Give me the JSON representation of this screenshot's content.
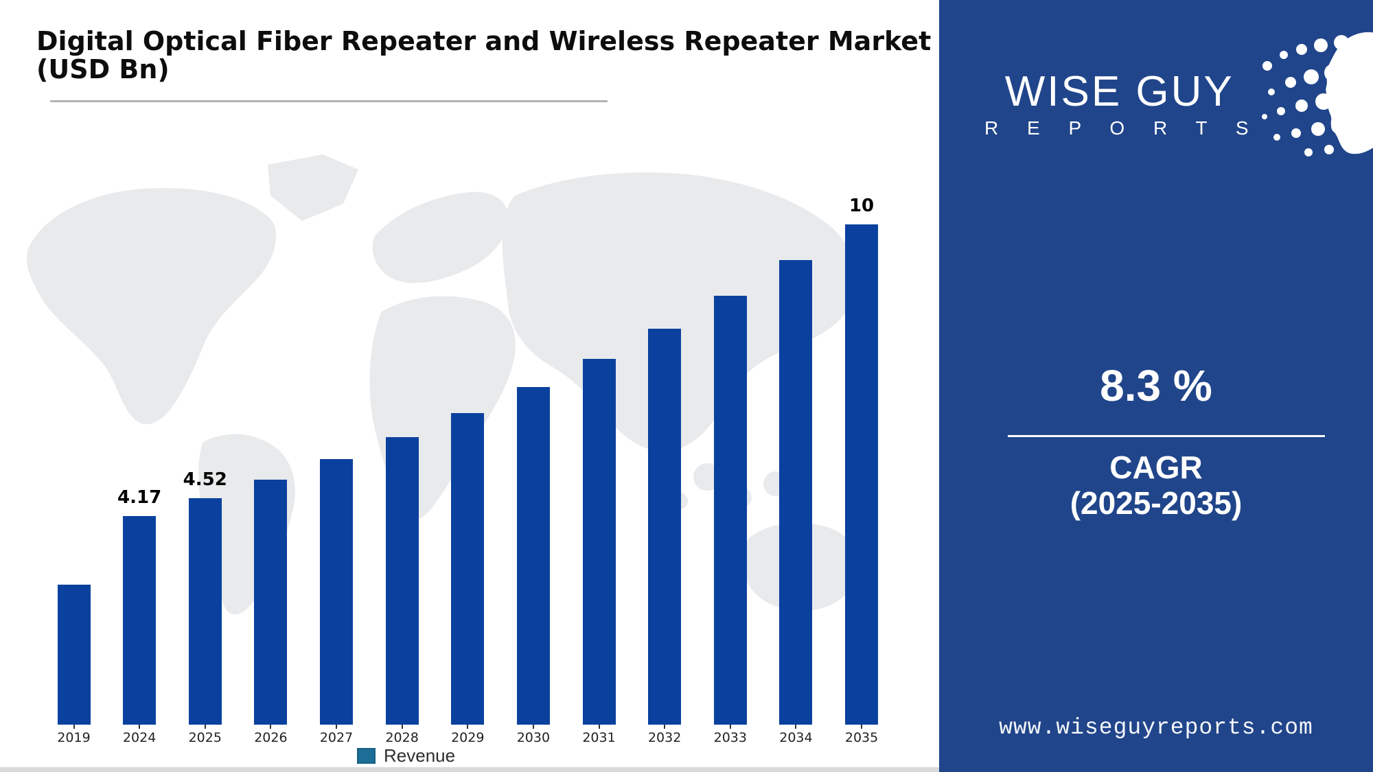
{
  "title": {
    "line1": "Digital Optical Fiber Repeater and Wireless Repeater Market",
    "line2": "(USD Bn)"
  },
  "chart_data": {
    "type": "bar",
    "title": "Digital Optical Fiber Repeater and Wireless Repeater Market (USD Bn)",
    "xlabel": "",
    "ylabel": "",
    "categories": [
      "2019",
      "2024",
      "2025",
      "2026",
      "2027",
      "2028",
      "2029",
      "2030",
      "2031",
      "2032",
      "2033",
      "2034",
      "2035"
    ],
    "values": [
      2.8,
      4.17,
      4.52,
      4.9,
      5.31,
      5.75,
      6.23,
      6.75,
      7.31,
      7.92,
      8.58,
      9.29,
      10
    ],
    "bar_labels": [
      "",
      "4.17",
      "4.52",
      "",
      "",
      "",
      "",
      "",
      "",
      "",
      "",
      "",
      "10"
    ],
    "series": [
      {
        "name": "Revenue",
        "values": [
          2.8,
          4.17,
          4.52,
          4.9,
          5.31,
          5.75,
          6.23,
          6.75,
          7.31,
          7.92,
          8.58,
          9.29,
          10
        ]
      }
    ],
    "ylim": [
      0,
      10.7
    ],
    "grid": false,
    "legend_position": "bottom",
    "bar_color": "#0b419e"
  },
  "legend": {
    "label": "Revenue",
    "swatch_color": "#1c6e96"
  },
  "panel": {
    "background_color": "#20458a",
    "logo_line1": "WISE GUY",
    "logo_line2": "R E P O R T S",
    "cagr_value": "8.3 %",
    "cagr_label_line1": "CAGR",
    "cagr_label_line2": "(2025-2035)",
    "website": "www.wiseguyreports.com"
  }
}
